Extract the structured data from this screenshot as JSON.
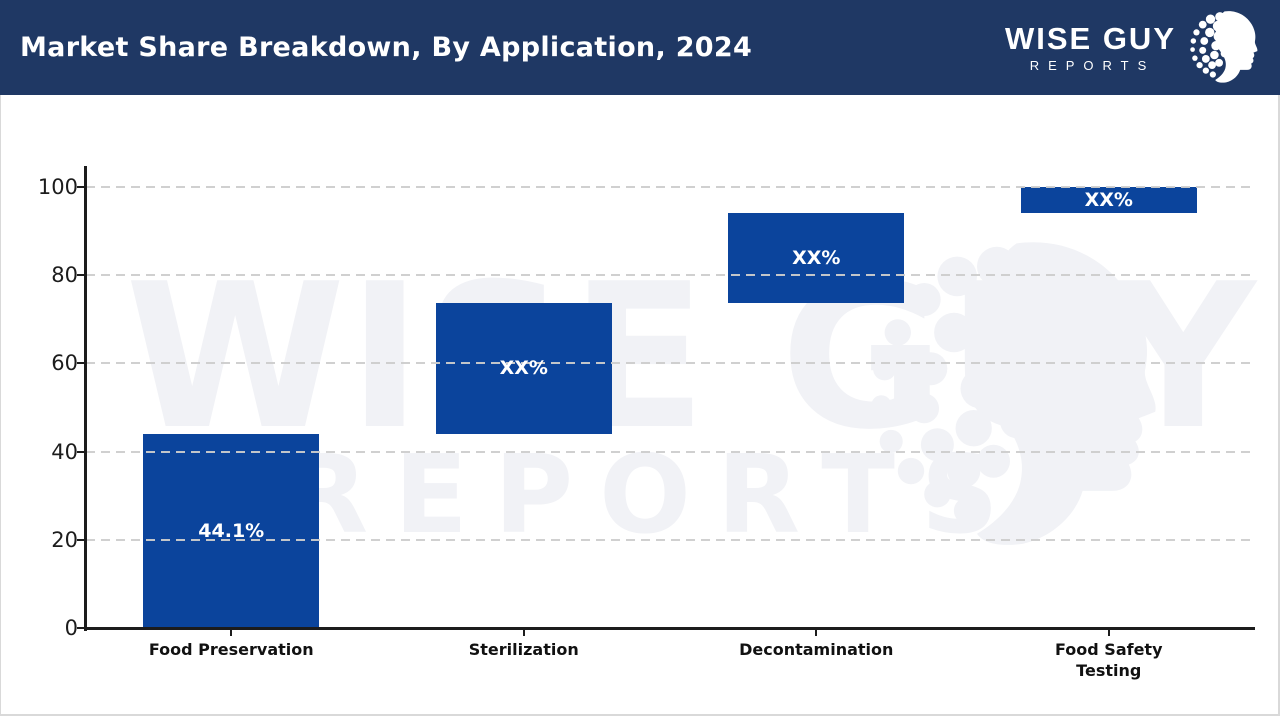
{
  "header": {
    "title": "Market Share Breakdown, By Application, 2024",
    "logo": {
      "line1": "WISE GUY",
      "line2": "REPORTS"
    }
  },
  "watermark": {
    "line1": "WISE GUY",
    "line2": "REPORTS"
  },
  "colors": {
    "header_bg": "#1f3864",
    "bar": "#0b449c",
    "bar_label": "#ffffff",
    "gridline": "#cdcdcd",
    "axis": "#1c1c1c",
    "watermark": "#f1f2f6"
  },
  "chart_data": {
    "type": "bar",
    "subtype": "waterfall",
    "title": "Market Share Breakdown, By Application, 2024",
    "categories": [
      "Food Preservation",
      "Sterilization",
      "Decontamination",
      "Food Safety\nTesting"
    ],
    "bars": [
      {
        "category": "Food Preservation",
        "start": 0,
        "end": 44.1,
        "label": "44.1%"
      },
      {
        "category": "Sterilization",
        "start": 44.1,
        "end": 73.7,
        "label": "XX%"
      },
      {
        "category": "Decontamination",
        "start": 73.7,
        "end": 94.2,
        "label": "XX%"
      },
      {
        "category": "Food Safety Testing",
        "start": 94.2,
        "end": 100,
        "label": "XX%"
      }
    ],
    "xlabel": "",
    "ylabel": "",
    "ylim": [
      0,
      100
    ],
    "yticks": [
      0,
      20,
      40,
      60,
      80,
      100
    ],
    "grid": "horizontal-dashed",
    "legend": "none"
  }
}
